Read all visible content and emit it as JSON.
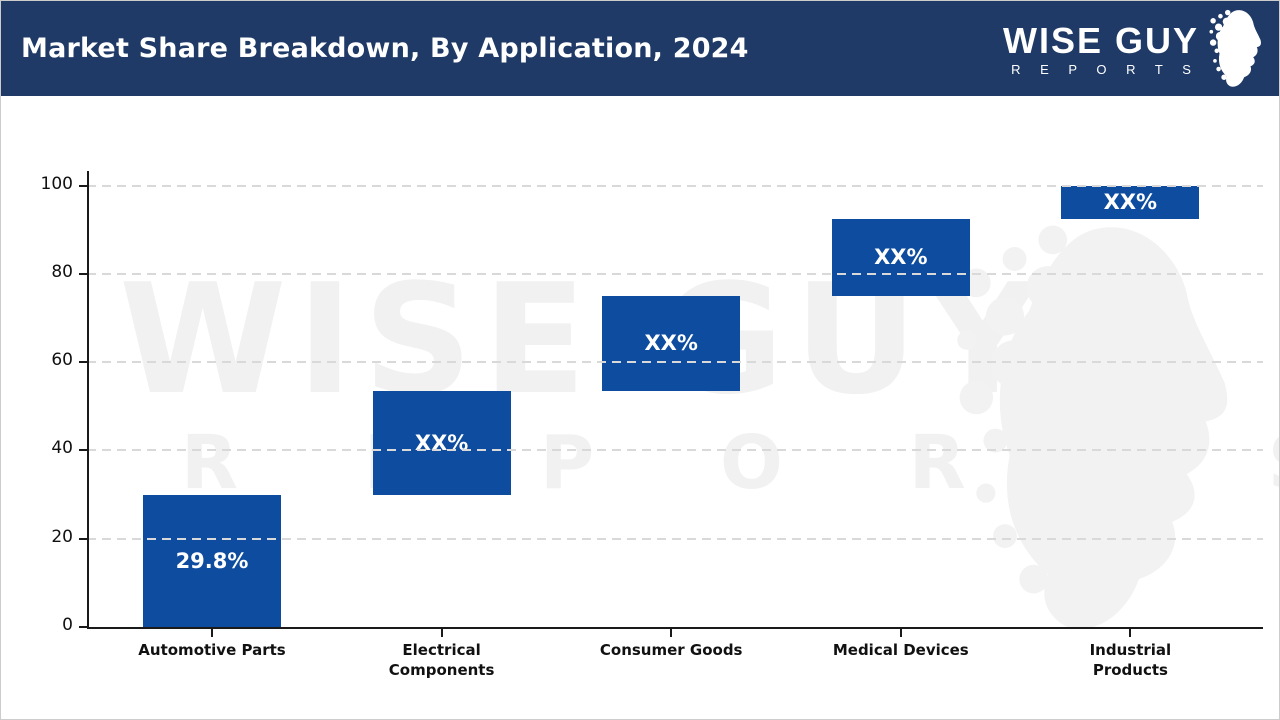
{
  "header": {
    "title": "Market Share Breakdown, By Application, 2024",
    "logo": {
      "line1": "WISE GUY",
      "line2": "R E P O R T S"
    }
  },
  "watermark": {
    "line1": "WISE GUY",
    "line2": "R E P O R T S"
  },
  "chart_data": {
    "type": "bar",
    "subtype": "waterfall",
    "title": "Market Share Breakdown, By Application, 2024",
    "categories": [
      "Automotive Parts",
      "Electrical\nComponents",
      "Consumer Goods",
      "Medical Devices",
      "Industrial\nProducts"
    ],
    "bars": [
      {
        "category": "Automotive Parts",
        "label": "29.8%",
        "start": 0,
        "end": 29.8
      },
      {
        "category": "Electrical Components",
        "label": "XX%",
        "start": 29.8,
        "end": 53.5
      },
      {
        "category": "Consumer Goods",
        "label": "XX%",
        "start": 53.5,
        "end": 75.0
      },
      {
        "category": "Medical Devices",
        "label": "XX%",
        "start": 75.0,
        "end": 92.4
      },
      {
        "category": "Industrial Products",
        "label": "XX%",
        "start": 92.4,
        "end": 100.0
      }
    ],
    "ylim": [
      0,
      100
    ],
    "yticks": [
      0,
      20,
      40,
      60,
      80,
      100
    ],
    "xlabel": "",
    "ylabel": "",
    "grid": "horizontal-dashed",
    "legend_position": "none"
  },
  "colors": {
    "header_bg": "#1f3a66",
    "bar": "#0d4c9e",
    "bar_label": "#ffffff",
    "grid": "#d9d9d9",
    "axis": "#1a1a1a",
    "watermark": "#f1f1f1"
  }
}
